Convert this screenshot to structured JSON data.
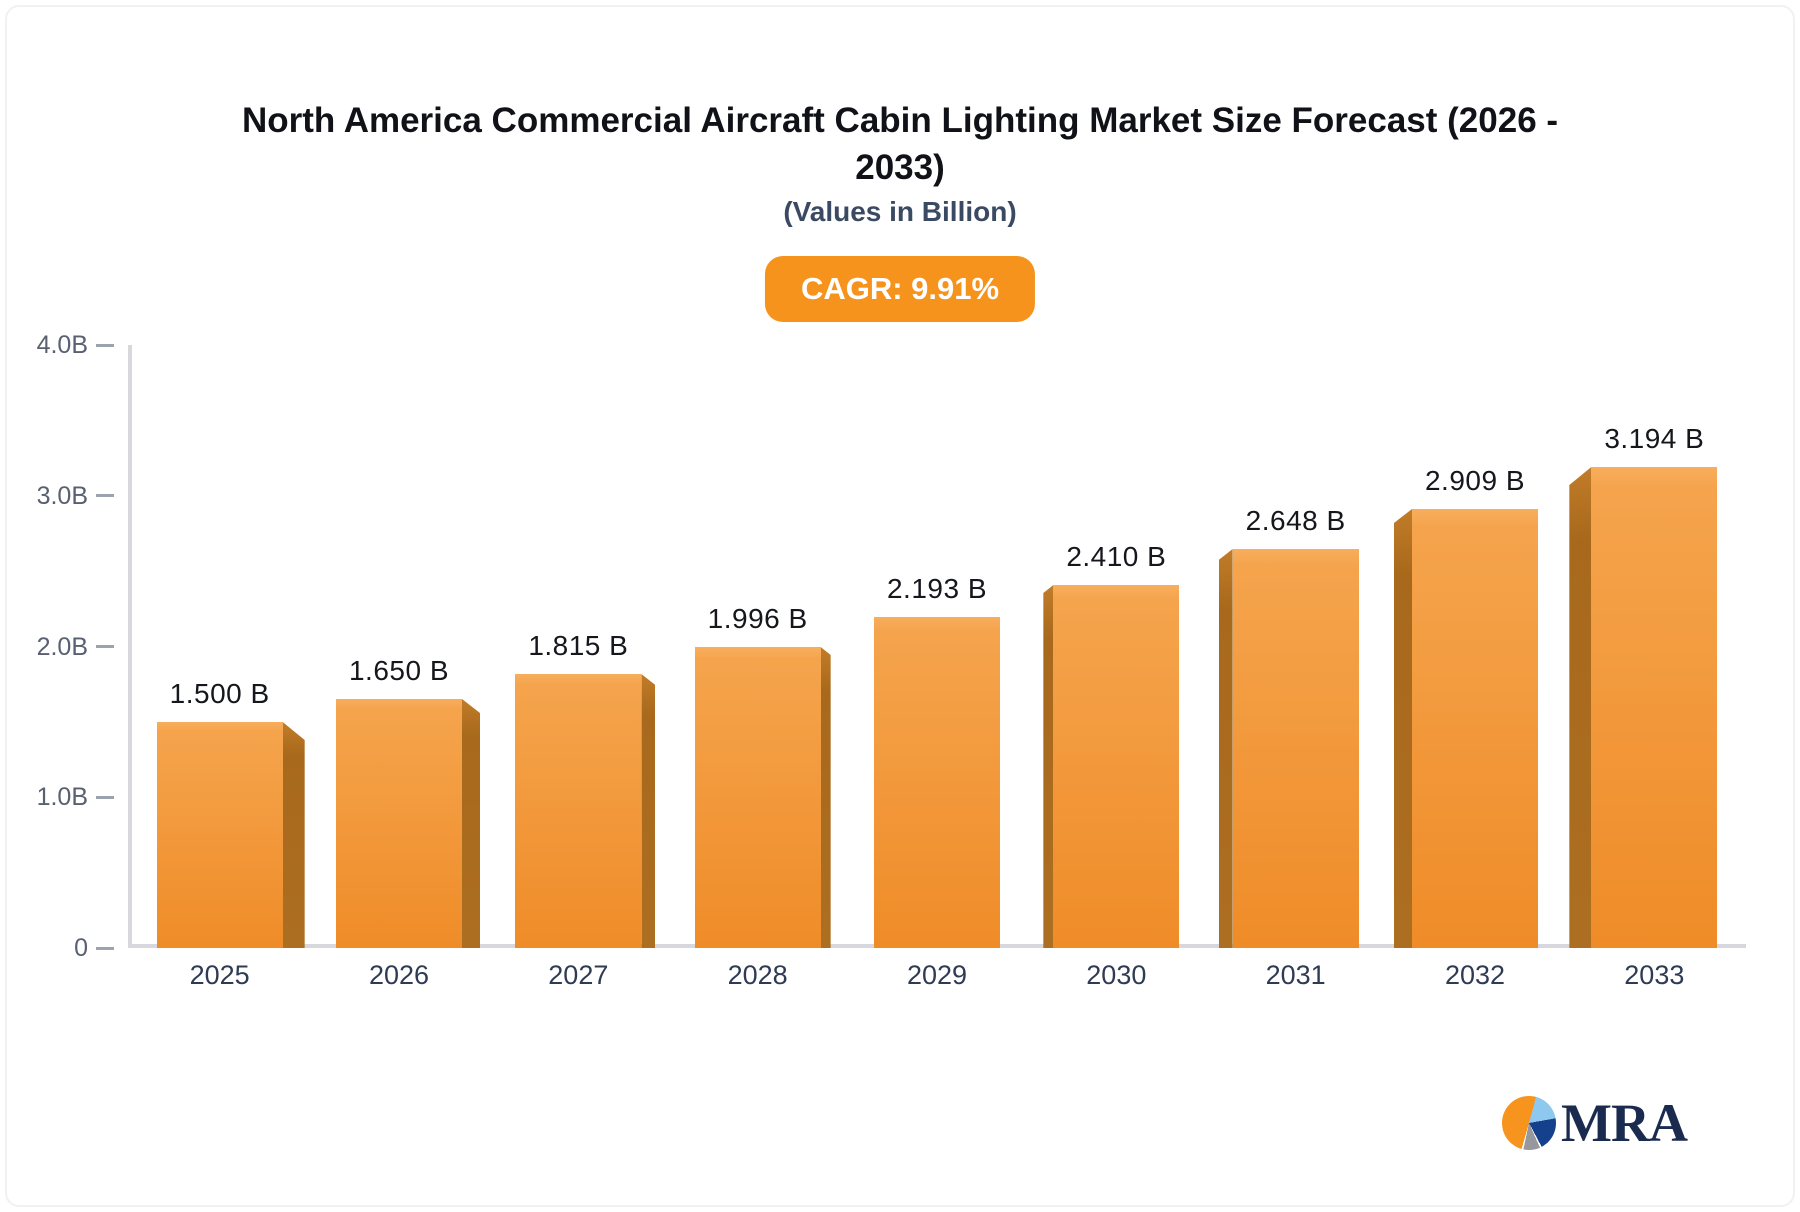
{
  "header": {
    "title": "North America Commercial Aircraft Cabin Lighting Market Size Forecast (2026 - 2033)",
    "title_lines": [
      "North America Commercial Aircraft Cabin Lighting Market Size Forecast (2026 -",
      "2033)"
    ],
    "subtitle": "(Values in Billion)"
  },
  "badge": {
    "label": "CAGR: 9.91%",
    "bg": "#F6931D",
    "text_color": "#FFFFFF"
  },
  "chart_data": {
    "type": "bar",
    "title": "North America Commercial Aircraft Cabin Lighting Market Size Forecast (2026 - 2033)",
    "subtitle": "(Values in Billion)",
    "categories": [
      "2025",
      "2026",
      "2027",
      "2028",
      "2029",
      "2030",
      "2031",
      "2032",
      "2033"
    ],
    "values": [
      1.5,
      1.65,
      1.815,
      1.996,
      2.193,
      2.41,
      2.648,
      2.909,
      3.194
    ],
    "value_labels": [
      "1.500 B",
      "1.650 B",
      "1.815 B",
      "1.996 B",
      "2.193 B",
      "2.410 B",
      "2.648 B",
      "2.909 B",
      "3.194 B"
    ],
    "unit": "Billion",
    "xlabel": "",
    "ylabel": "",
    "ylim": [
      0,
      4
    ],
    "yticks": [
      {
        "value": 0,
        "label": "0"
      },
      {
        "value": 1,
        "label": "1.0B"
      },
      {
        "value": 2,
        "label": "2.0B"
      },
      {
        "value": 3,
        "label": "3.0B"
      },
      {
        "value": 4,
        "label": "4.0B"
      }
    ],
    "grid": false,
    "legend": null,
    "style": "3d-bars, side face toward outer edge, no side on center bar",
    "colors": {
      "bar_top": "#F8AE5D",
      "bar_bottom": "#EF8C28",
      "bar_side": "#AC6E20",
      "axis_line": "#D7D8DD",
      "tick_mark": "#9AA3AE",
      "ytick_text": "#586071",
      "xtick_text": "#2F3B55",
      "value_text": "#15171C"
    }
  },
  "logo": {
    "text": "MRA",
    "text_color": "#1B2B50",
    "colors": {
      "orange": "#F6941E",
      "light_blue": "#8FC8EF",
      "navy": "#15418C",
      "gray": "#97989D"
    }
  }
}
